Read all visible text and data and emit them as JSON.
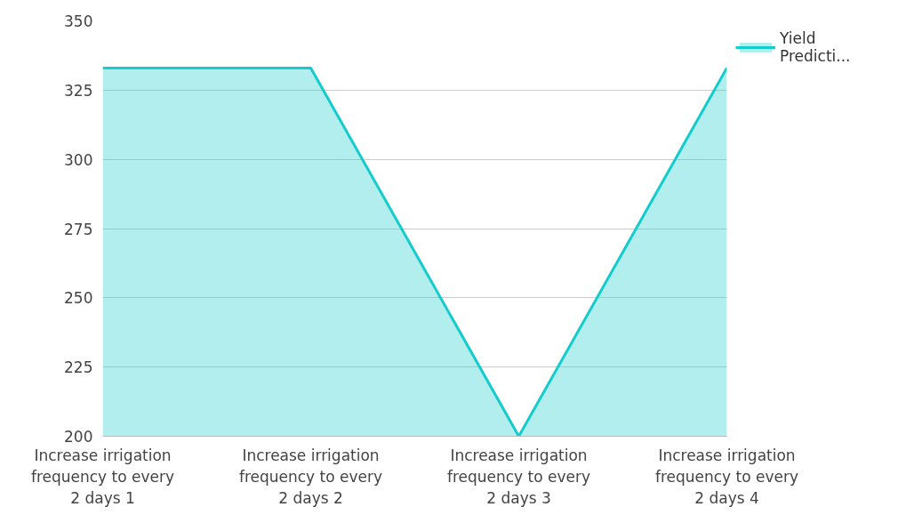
{
  "chart_data": {
    "type": "area",
    "categories": [
      "Increase irrigation frequency to every 2 days 1",
      "Increase irrigation frequency to every 2 days 2",
      "Increase irrigation frequency to every 2 days 3",
      "Increase irrigation frequency to every 2 days 4"
    ],
    "series": [
      {
        "name": "Yield Predicti...",
        "color": "#14cccc",
        "values": [
          333,
          333,
          200,
          333
        ]
      }
    ],
    "ylim": [
      200,
      350
    ],
    "yticks": [
      200,
      225,
      250,
      275,
      300,
      325,
      350
    ],
    "grid": "y",
    "legend": "top right"
  }
}
